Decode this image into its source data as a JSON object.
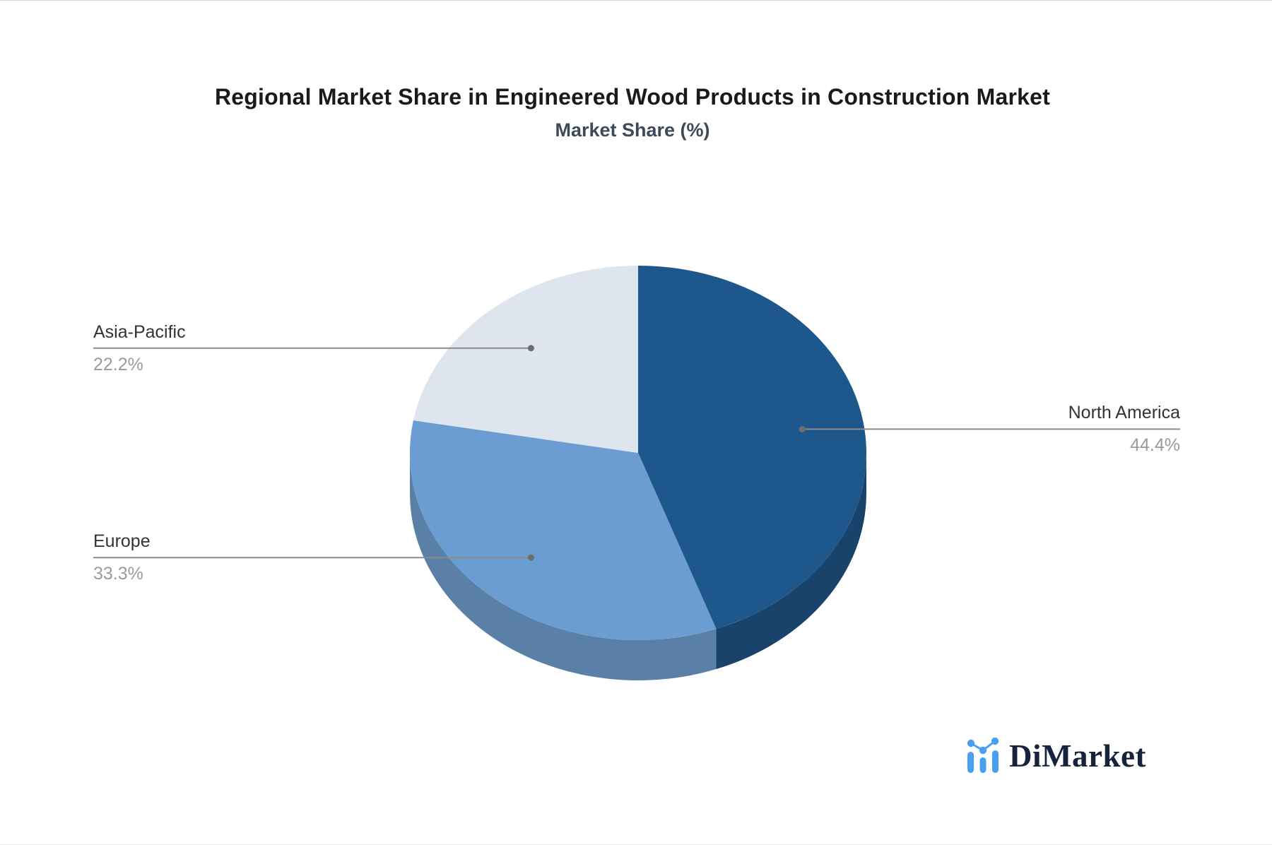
{
  "header": {
    "title": "Regional Market Share in Engineered Wood Products in Construction Market",
    "subtitle": "Market Share (%)"
  },
  "chart_data": {
    "type": "pie",
    "title": "Regional Market Share in Engineered Wood Products in Construction Market",
    "subtitle": "Market Share (%)",
    "unit": "percent",
    "effect": "3d",
    "start_angle": "12 o'clock, clockwise",
    "legend_position": "leader-line callouts",
    "slices": [
      {
        "label": "North America",
        "value": 44.4,
        "display": "44.4%",
        "color": "#1d578b",
        "side_color": "#19436a"
      },
      {
        "label": "Europe",
        "value": 33.3,
        "display": "33.3%",
        "color": "#6b9cd2",
        "side_color": "#5b80a8"
      },
      {
        "label": "Asia-Pacific",
        "value": 22.2,
        "display": "22.2%",
        "color": "#dee5ef",
        "side_color": "#b9c6d8"
      }
    ]
  },
  "branding": {
    "logo_text": "DiMarket",
    "icon": "bar-line-chart-icon",
    "icon_color": "#4aa0f0",
    "text_color": "#16233d"
  },
  "style": {
    "background": "#ffffff",
    "title_color": "#1a1a1a",
    "subtitle_color": "#3d4a59",
    "label_color": "#333333",
    "percent_color": "#9b9b9b",
    "leader_line_color": "#8c8c8c",
    "leader_dot_color": "#6e6e6e"
  }
}
